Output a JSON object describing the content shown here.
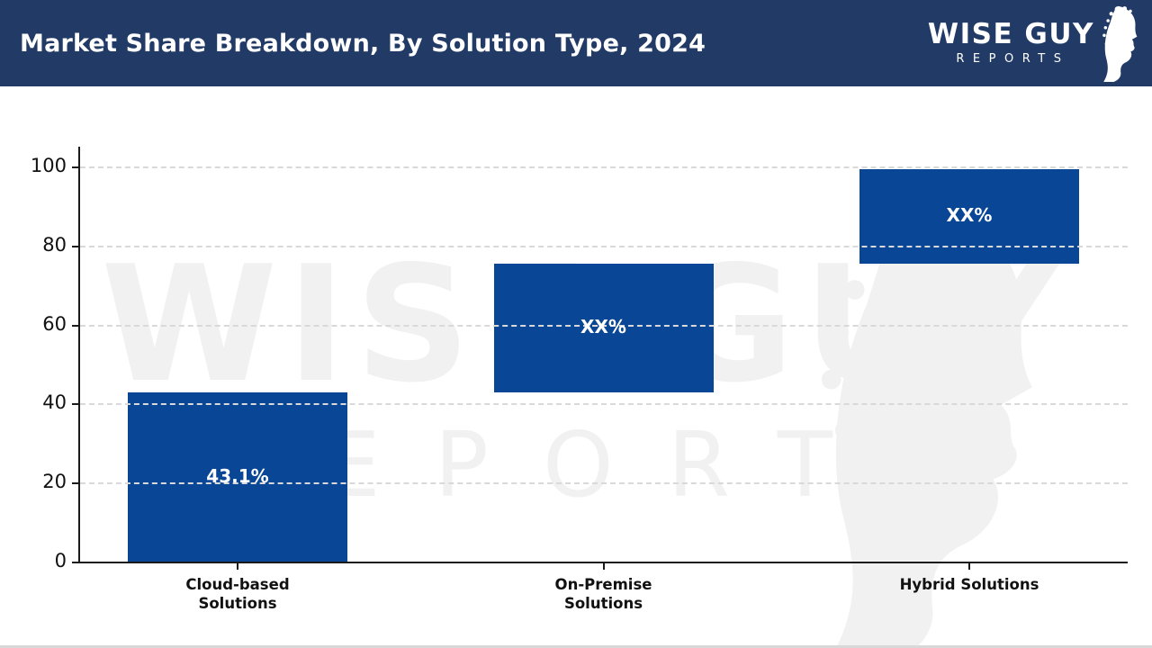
{
  "header": {
    "title": "Market Share Breakdown, By Solution Type, 2024",
    "logo": {
      "wordmark": "WISE GUY",
      "subtext": "REPORTS"
    }
  },
  "watermark": {
    "wordmark": "WISE GUY",
    "subtext": "REPORTS"
  },
  "chart_data": {
    "type": "bar",
    "variant": "floating-segment-waterfall",
    "title": "Market Share Breakdown, By Solution Type, 2024",
    "categories": [
      "Cloud-based\nSolutions",
      "On-Premise\nSolutions",
      "Hybrid Solutions"
    ],
    "bars": [
      {
        "category": "Cloud-based Solutions",
        "start": 0,
        "end": 43.1,
        "label": "43.1%"
      },
      {
        "category": "On-Premise Solutions",
        "start": 43.1,
        "end": 75.7,
        "label": "XX%"
      },
      {
        "category": "Hybrid Solutions",
        "start": 75.7,
        "end": 99.5,
        "label": "XX%"
      }
    ],
    "xlabel": "",
    "ylabel": "",
    "ylim": [
      0,
      105
    ],
    "yticks": [
      0,
      20,
      40,
      60,
      80,
      100
    ],
    "grid": "horizontal-dashed",
    "legend": "none",
    "colors": {
      "bar": "#0a4696",
      "bar_label": "#ffffff",
      "axis": "#1a1a1a",
      "gridline": "#d9d9d9",
      "header_bg": "#213a66",
      "watermark": "#f1f1f2"
    }
  }
}
